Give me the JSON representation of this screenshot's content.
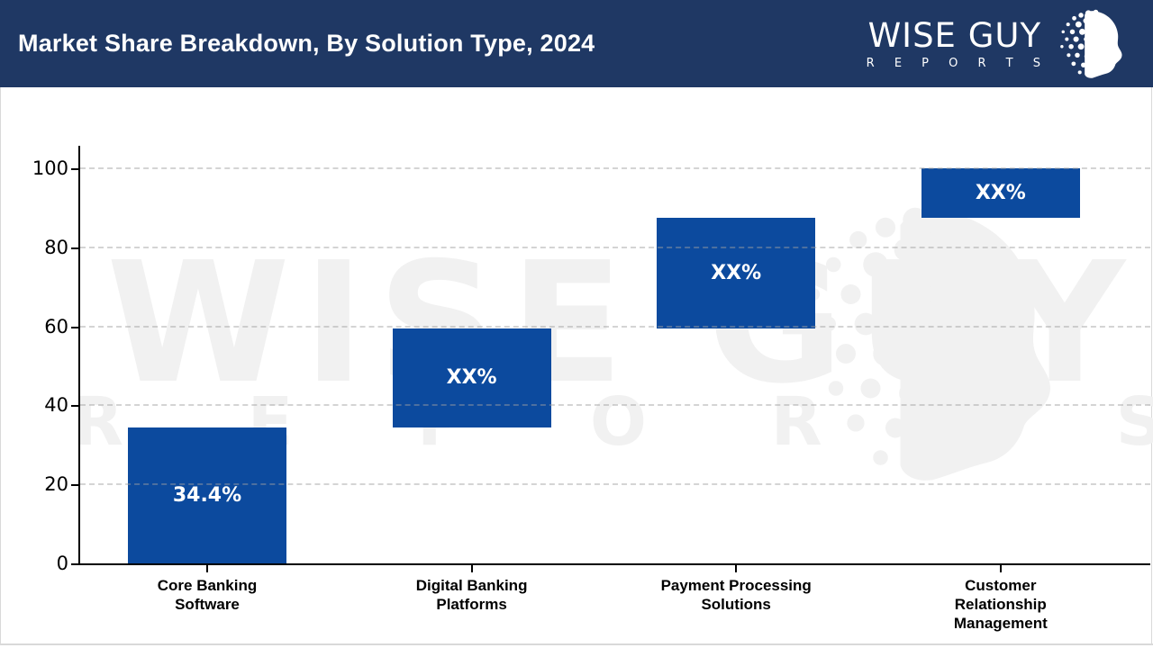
{
  "header": {
    "title": "Market Share Breakdown, By Solution Type, 2024",
    "logo_line1": "WISE GUY",
    "logo_line2": "R E P O R T S"
  },
  "watermark": {
    "line1": "WISE GUY",
    "line2": "R E P O R T S"
  },
  "colors": {
    "header_bg": "#1F3864",
    "bar": "#0C4A9E",
    "bar_label": "#FFFFFF",
    "axis": "#000000",
    "grid": "#DBDBDB",
    "watermark": "#F1F1F1"
  },
  "chart_data": {
    "type": "bar",
    "subtype": "waterfall",
    "title": "Market Share Breakdown, By Solution Type, 2024",
    "xlabel": "",
    "ylabel": "",
    "categories": [
      "Core Banking\nSoftware",
      "Digital Banking\nPlatforms",
      "Payment Processing\nSolutions",
      "Customer\nRelationship\nManagement"
    ],
    "segments": [
      {
        "category": "Core Banking Software",
        "start": 0,
        "end": 34.4,
        "label": "34.4%"
      },
      {
        "category": "Digital Banking Platforms",
        "start": 34.4,
        "end": 59.5,
        "label": "XX%"
      },
      {
        "category": "Payment Processing Solutions",
        "start": 59.5,
        "end": 87.5,
        "label": "XX%"
      },
      {
        "category": "Customer Relationship Management",
        "start": 87.5,
        "end": 100,
        "label": "XX%"
      }
    ],
    "yticks": [
      0,
      20,
      40,
      60,
      80,
      100
    ],
    "ylim": [
      0,
      106
    ],
    "grid": "horizontal-dashed",
    "legend": "none",
    "bar_color": "#0C4A9E",
    "value_label_color": "#FFFFFF"
  }
}
